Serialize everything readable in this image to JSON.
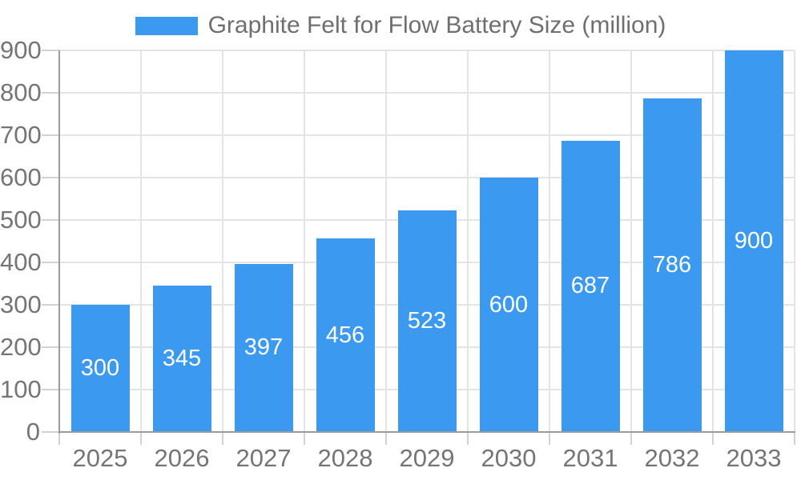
{
  "chart_data": {
    "type": "bar",
    "title": "Graphite Felt for Flow Battery Size (million)",
    "categories": [
      "2025",
      "2026",
      "2027",
      "2028",
      "2029",
      "2030",
      "2031",
      "2032",
      "2033"
    ],
    "values": [
      300,
      345,
      397,
      456,
      523,
      600,
      687,
      786,
      900
    ],
    "bar_labels": [
      "300",
      "345",
      "397",
      "456",
      "523",
      "600",
      "687",
      "786",
      "900"
    ],
    "xlabel": "",
    "ylabel": "",
    "ylim": [
      0,
      900
    ],
    "yticks": [
      0,
      100,
      200,
      300,
      400,
      500,
      600,
      700,
      800,
      900
    ],
    "ytick_labels": [
      "0",
      "100",
      "200",
      "300",
      "400",
      "500",
      "600",
      "700",
      "800",
      "900"
    ],
    "grid": true,
    "legend_position": "top-center",
    "colors": {
      "bar": "#3C99F0",
      "bar_value_text": "#ffffff",
      "gridline": "#e4e4e4",
      "axis_line": "#9b9b9b",
      "tick_mark": "#d2d2d2",
      "axis_label_text": "#757575",
      "legend_text": "#6f6f6f"
    }
  }
}
